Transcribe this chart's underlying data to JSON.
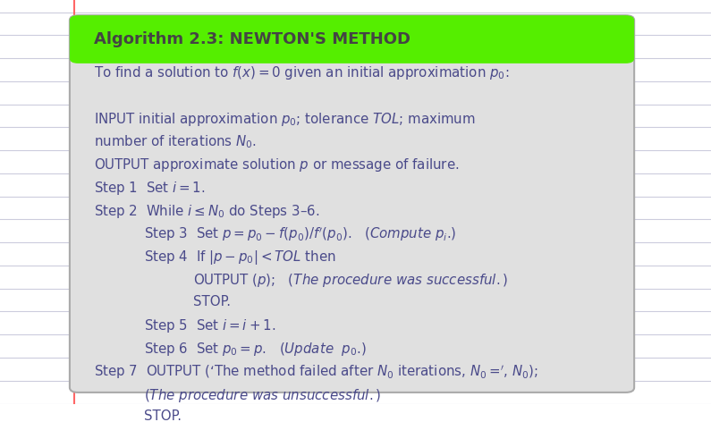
{
  "title": "Algorithm 2.3: NEWTON'S METHOD",
  "title_bg": "#55EE00",
  "title_color": "#444444",
  "box_bg": "#E0E0E0",
  "outer_bg": "#FFFFFF",
  "ruled_line_color": "#CCCCDD",
  "left_margin_line": "#FF6666",
  "text_color": "#4A4A8A",
  "figsize": [
    7.95,
    4.72
  ],
  "dpi": 100,
  "lines": [
    {
      "text": "To find a solution to $f(x) = 0$ given an initial approximation $p_0$:",
      "indent": 0
    },
    {
      "text": "",
      "indent": 0
    },
    {
      "text": "INPUT initial approximation $p_0$; tolerance $\\mathit{TOL}$; maximum",
      "indent": 0
    },
    {
      "text": "number of iterations $N_0$.",
      "indent": 0
    },
    {
      "text": "OUTPUT approximate solution $p$ or message of failure.",
      "indent": 0
    },
    {
      "text": "Step 1  Set $i = 1$.",
      "indent": 0
    },
    {
      "text": "Step 2  While $i \\leq N_0$ do Steps 3–6.",
      "indent": 0
    },
    {
      "text": "Step 3  Set $p = p_0 - f(p_0)/f'(p_0)$.   $(\\mathit{Compute}$ $p_i$.$)$",
      "indent": 1
    },
    {
      "text": "Step 4  If $|p - p_0| < \\mathit{TOL}$ then",
      "indent": 1
    },
    {
      "text": "OUTPUT $(p)$;   $(\\mathit{The\\ procedure\\ was\\ successful.})$",
      "indent": 2
    },
    {
      "text": "STOP.",
      "indent": 2
    },
    {
      "text": "Step 5  Set $i = i + 1$.",
      "indent": 1
    },
    {
      "text": "Step 6  Set $p_0 = p$.   $(\\mathit{Update}$ $\\ p_0$.$)$",
      "indent": 1
    },
    {
      "text": "Step 7  OUTPUT (‘The method failed after $N_0$ iterations, $N_0 =\\!'$, $N_0$);",
      "indent": 0
    },
    {
      "text": "$(\\mathit{The\\ procedure\\ was\\ unsuccessful.})$",
      "indent": 1
    },
    {
      "text": "STOP.",
      "indent": 1
    }
  ]
}
